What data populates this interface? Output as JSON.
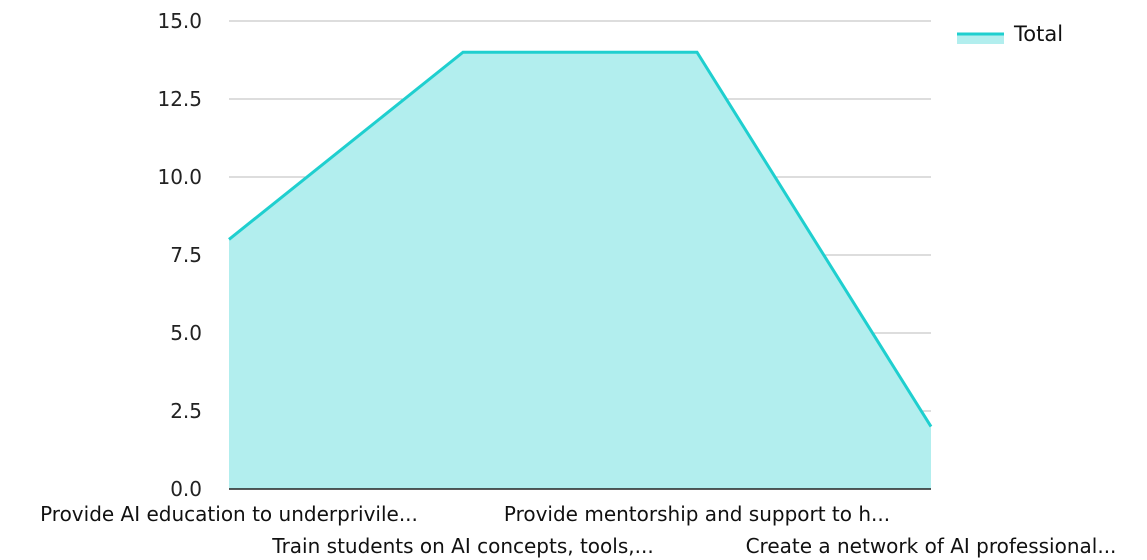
{
  "colors": {
    "line": "#1FCFCF",
    "fill": "#B2EEEE",
    "grid": "#BBBBBB",
    "axis": "#222222"
  },
  "chart_data": {
    "type": "area",
    "categories": [
      "Provide AI education to underprivile...",
      "Train students on AI concepts, tools,...",
      "Provide mentorship and support to h...",
      "Create a network of AI professional..."
    ],
    "series": [
      {
        "name": "Total",
        "values": [
          8,
          14,
          14,
          2
        ]
      }
    ],
    "yticks": [
      "0.0",
      "2.5",
      "5.0",
      "7.5",
      "10.0",
      "12.5",
      "15.0"
    ],
    "ylim": [
      0,
      15
    ],
    "grid": true,
    "legend": "top-right",
    "title": "",
    "xlabel": "",
    "ylabel": ""
  }
}
